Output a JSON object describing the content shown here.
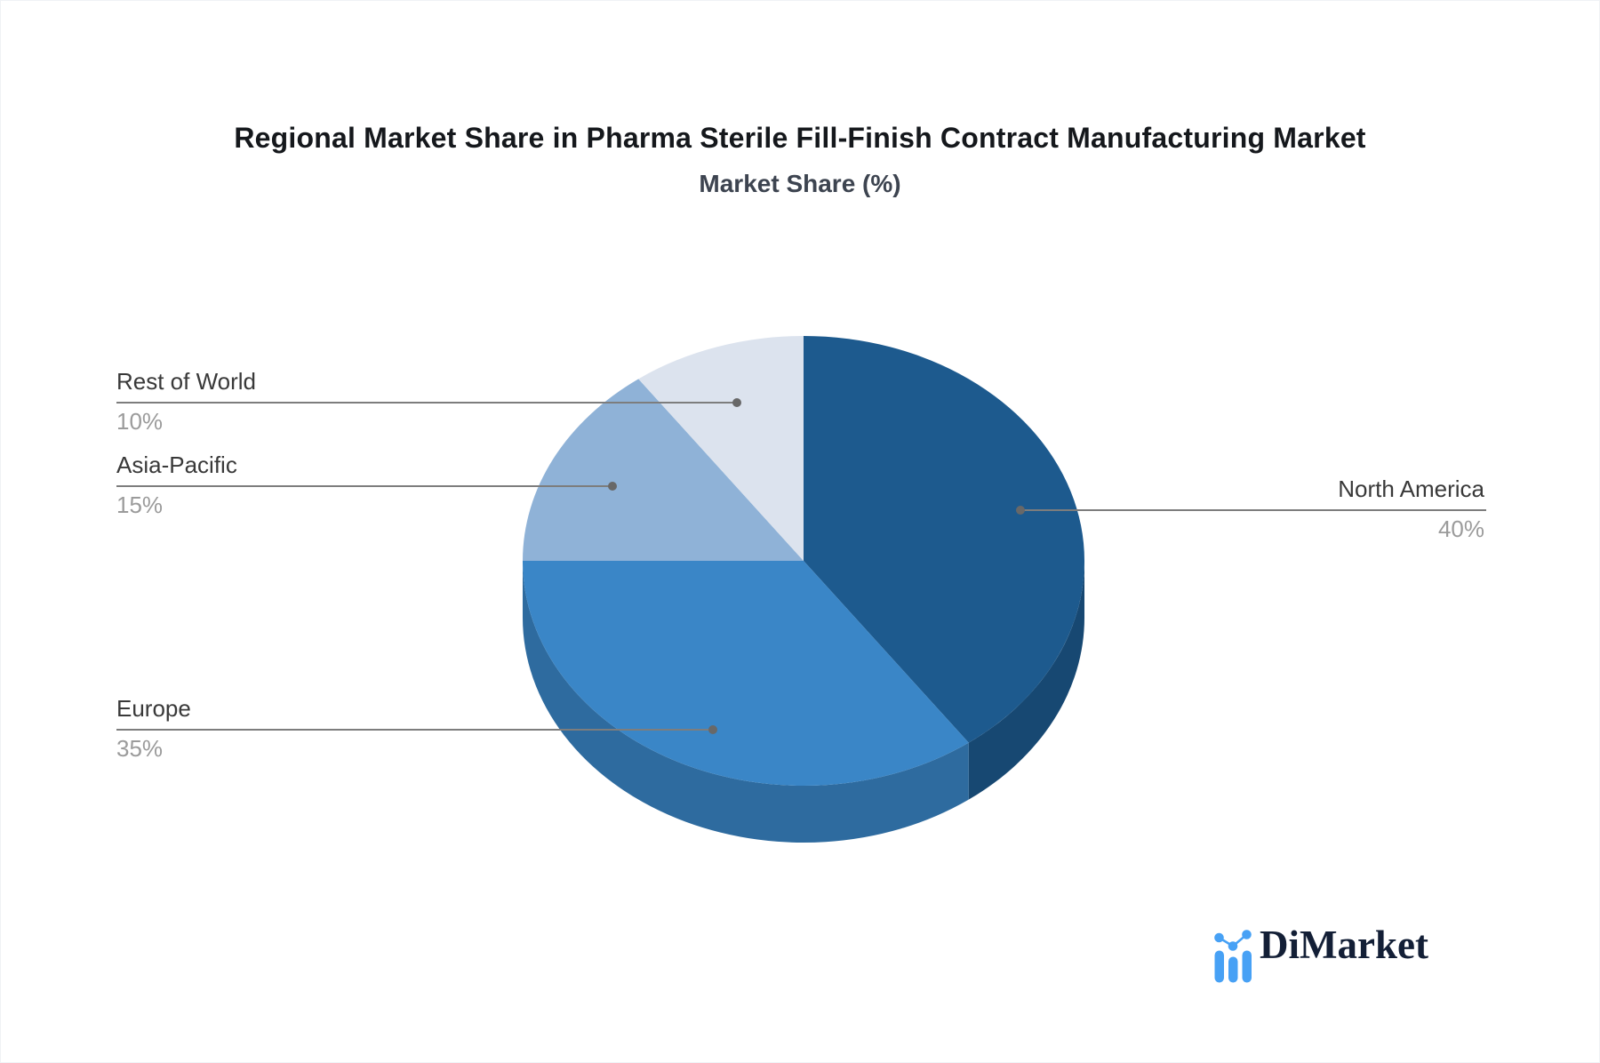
{
  "title": "Regional Market Share in Pharma Sterile Fill-Finish Contract Manufacturing Market",
  "subtitle": "Market Share (%)",
  "chart_data": {
    "type": "pie",
    "style": "3d",
    "start": "12-oclock",
    "direction": "clockwise",
    "unit": "%",
    "title": "Regional Market Share in Pharma Sterile Fill-Finish Contract Manufacturing Market",
    "subtitle": "Market Share (%)",
    "slices": [
      {
        "label": "North America",
        "value": 40,
        "display": "40%",
        "color": "#1d5a8e"
      },
      {
        "label": "Europe",
        "value": 35,
        "display": "35%",
        "color": "#3a86c7"
      },
      {
        "label": "Asia-Pacific",
        "value": 15,
        "display": "15%",
        "color": "#8fb2d7"
      },
      {
        "label": "Rest of World",
        "value": 10,
        "display": "10%",
        "color": "#dce3ee"
      }
    ],
    "legend_position": "callout-labels",
    "label_color": "#393939",
    "value_color": "#9b9b9b",
    "leader_line_color": "#7d7d7d",
    "leader_dot_color": "#686868"
  },
  "branding": {
    "logo_text": "DiMarket",
    "logo_icon": "bar-line-chart-icon",
    "logo_text_color": "#131f36",
    "logo_icon_color": "#47a1f5"
  }
}
